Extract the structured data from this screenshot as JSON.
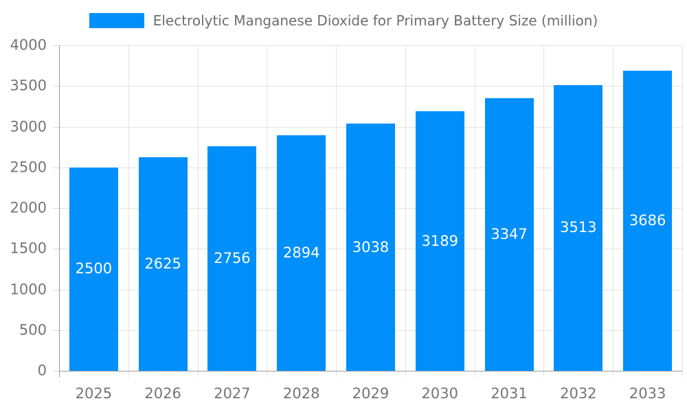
{
  "legend": {
    "label": "Electrolytic Manganese Dioxide for Primary Battery Size (million)"
  },
  "colors": {
    "bar": "#008FFB",
    "grid": "#e3e3e3",
    "axis": "#9a9a9a",
    "tick": "#d9d9d9",
    "text": "#757575",
    "title_text": "#6e6e6e",
    "bar_label": "#ffffff",
    "background": "#ffffff"
  },
  "chart_data": {
    "type": "bar",
    "title": "Electrolytic Manganese Dioxide for Primary Battery Size (million)",
    "categories": [
      "2025",
      "2026",
      "2027",
      "2028",
      "2029",
      "2030",
      "2031",
      "2032",
      "2033"
    ],
    "values": [
      2500,
      2625,
      2756,
      2894,
      3038,
      3189,
      3347,
      3513,
      3686
    ],
    "xlabel": "",
    "ylabel": "",
    "ylim": [
      0,
      4000
    ],
    "ytick_step": 500,
    "grid": true,
    "legend_position": "top",
    "value_labels": "inside-center"
  }
}
